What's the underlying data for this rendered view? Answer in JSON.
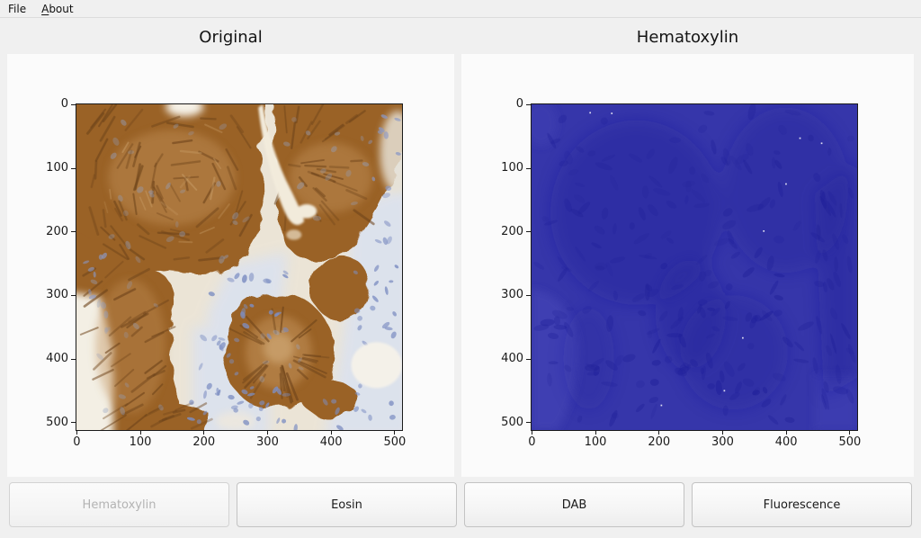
{
  "window": {
    "background": "#f0f0f0"
  },
  "menu": {
    "items": [
      {
        "label": "File",
        "accel_index": null
      },
      {
        "label": "About",
        "accel_index": 0
      }
    ]
  },
  "panels": [
    {
      "title": "Original",
      "image": {
        "kind": "ihc-histology-original",
        "dominant_colors": [
          "#9a6227",
          "#ebe4d6",
          "#8292c2"
        ]
      },
      "axis": {
        "x_ticks": [
          "0",
          "100",
          "200",
          "300",
          "400",
          "500"
        ],
        "y_ticks": [
          "0",
          "100",
          "200",
          "300",
          "400",
          "500"
        ],
        "x_range": [
          0,
          512
        ],
        "y_range": [
          0,
          512
        ]
      }
    },
    {
      "title": "Hematoxylin",
      "image": {
        "kind": "hematoxylin-channel",
        "dominant_colors": [
          "#3636aa",
          "#22229a"
        ]
      },
      "axis": {
        "x_ticks": [
          "0",
          "100",
          "200",
          "300",
          "400",
          "500"
        ],
        "y_ticks": [
          "0",
          "100",
          "200",
          "300",
          "400",
          "500"
        ],
        "x_range": [
          0,
          512
        ],
        "y_range": [
          0,
          512
        ]
      }
    }
  ],
  "buttons": [
    {
      "label": "Hematoxylin",
      "enabled": false
    },
    {
      "label": "Eosin",
      "enabled": true
    },
    {
      "label": "DAB",
      "enabled": true
    },
    {
      "label": "Fluorescence",
      "enabled": true
    }
  ],
  "colors": {
    "stain_dab_brown": "#9a6227",
    "stain_hematoxylin_blue": "#3636aa",
    "disabled_text": "#b3b3b3",
    "card_background": "#fbfbfb"
  }
}
